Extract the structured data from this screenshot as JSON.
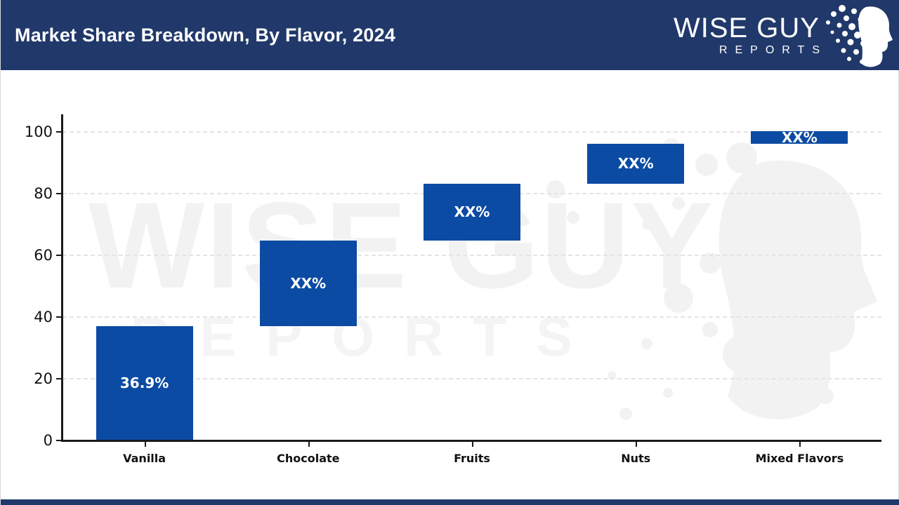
{
  "header": {
    "title": "Market Share Breakdown, By Flavor, 2024",
    "logo": {
      "line1": "WISE GUY",
      "line2": "REPORTS"
    }
  },
  "watermark": {
    "line1": "WISE GUY",
    "line2": "REPORTS"
  },
  "colors": {
    "header_bg": "#21386a",
    "footer_bg": "#21386a",
    "bar_fill": "#0c4ba3",
    "bar_label_text": "#ffffff",
    "axis": "#1a1a1a",
    "gridline": "#e4e4e4",
    "watermark": "#f2f2f3"
  },
  "chart_data": {
    "type": "bar",
    "subtype": "waterfall",
    "title": "Market Share Breakdown, By Flavor, 2024",
    "xlabel": "",
    "ylabel": "",
    "categories": [
      "Vanilla",
      "Chocolate",
      "Fruits",
      "Nuts",
      "Mixed Flavors"
    ],
    "segments": [
      {
        "category": "Vanilla",
        "start": 0,
        "end": 36.9,
        "label": "36.9%"
      },
      {
        "category": "Chocolate",
        "start": 36.9,
        "end": 64.5,
        "label": "XX%"
      },
      {
        "category": "Fruits",
        "start": 64.5,
        "end": 83.0,
        "label": "XX%"
      },
      {
        "category": "Nuts",
        "start": 83.0,
        "end": 96.0,
        "label": "XX%"
      },
      {
        "category": "Mixed Flavors",
        "start": 96.0,
        "end": 100.0,
        "label": "XX%"
      }
    ],
    "yticks": [
      0,
      20,
      40,
      60,
      80,
      100
    ],
    "ylim": [
      0,
      105.5
    ],
    "grid": "horizontal-dashed",
    "legend": "none"
  }
}
